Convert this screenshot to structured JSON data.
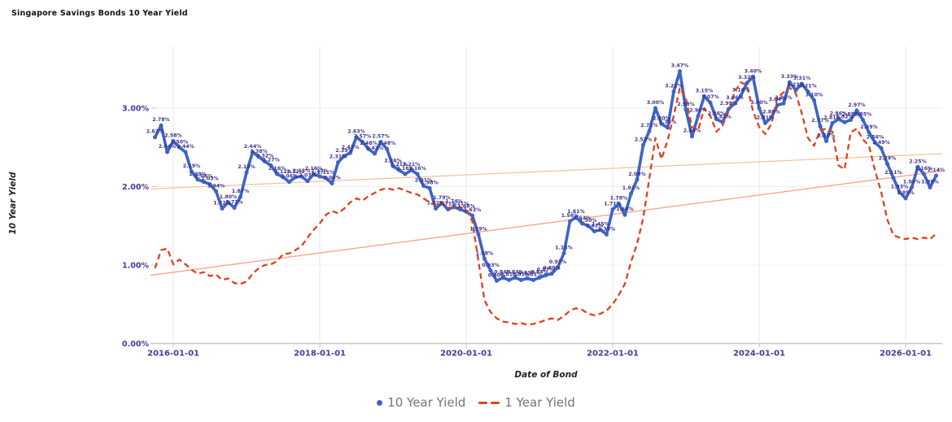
{
  "chart_data": {
    "type": "line",
    "title": "Singapore Savings Bonds 10 Year Yield",
    "xlabel": "Date of Bond",
    "ylabel": "10 Year Yield",
    "start_month": "2015-10",
    "x_ticks": [
      "2016-01-01",
      "2018-01-01",
      "2020-01-01",
      "2022-01-01",
      "2024-01-01",
      "2026-01-01"
    ],
    "y_ticks": [
      "0.00%",
      "1.00%",
      "2.00%",
      "3.00%"
    ],
    "ylim": [
      0,
      3.8
    ],
    "grid": true,
    "legend_position": "bottom",
    "point_label_format": "percent-2dp",
    "colors": {
      "grid": "#e7e7e7",
      "hgrid": "#efefef",
      "axis": "#c6c6c6",
      "tick_label": "#46399b",
      "point_label": "#3e3191",
      "title": "#111111",
      "legend_text": "#757575"
    },
    "series": [
      {
        "name": "10 Year Yield",
        "color": "#3c64c4",
        "style": "solid-dots",
        "labels": true,
        "values": [
          2.63,
          2.78,
          2.44,
          2.58,
          2.5,
          2.44,
          2.19,
          2.09,
          2.06,
          2.03,
          1.94,
          1.72,
          1.8,
          1.73,
          1.87,
          2.18,
          2.44,
          2.38,
          2.32,
          2.27,
          2.16,
          2.12,
          2.06,
          2.12,
          2.13,
          2.07,
          2.16,
          2.13,
          2.11,
          2.04,
          2.31,
          2.39,
          2.43,
          2.63,
          2.57,
          2.48,
          2.42,
          2.57,
          2.48,
          2.26,
          2.21,
          2.16,
          2.21,
          2.16,
          2.01,
          1.98,
          1.72,
          1.79,
          1.71,
          1.74,
          1.71,
          1.68,
          1.63,
          1.39,
          1.08,
          0.93,
          0.8,
          0.84,
          0.81,
          0.84,
          0.81,
          0.83,
          0.81,
          0.84,
          0.87,
          0.89,
          0.97,
          1.15,
          1.56,
          1.61,
          1.53,
          1.5,
          1.43,
          1.45,
          1.39,
          1.71,
          1.78,
          1.64,
          1.91,
          2.09,
          2.53,
          2.71,
          3.0,
          2.8,
          2.75,
          3.21,
          3.47,
          2.98,
          2.64,
          2.9,
          3.15,
          3.07,
          2.86,
          2.82,
          2.99,
          3.06,
          3.16,
          3.32,
          3.4,
          3.0,
          2.81,
          2.88,
          3.04,
          3.06,
          3.33,
          3.23,
          3.31,
          3.21,
          3.1,
          2.77,
          2.58,
          2.81,
          2.86,
          2.82,
          2.85,
          2.97,
          2.85,
          2.69,
          2.56,
          2.49,
          2.29,
          2.11,
          1.93,
          1.85,
          1.99,
          2.25,
          2.16,
          1.99,
          2.14
        ]
      },
      {
        "name": "1 Year Yield",
        "color": "#e0401f",
        "style": "dashed",
        "labels": false,
        "values": [
          0.96,
          1.19,
          1.21,
          1.01,
          1.07,
          1.01,
          0.94,
          0.89,
          0.91,
          0.86,
          0.88,
          0.81,
          0.83,
          0.77,
          0.76,
          0.79,
          0.89,
          0.96,
          1.0,
          1.01,
          1.05,
          1.14,
          1.15,
          1.19,
          1.24,
          1.35,
          1.45,
          1.53,
          1.64,
          1.69,
          1.66,
          1.72,
          1.8,
          1.85,
          1.82,
          1.88,
          1.92,
          1.96,
          1.98,
          1.96,
          1.98,
          1.95,
          1.92,
          1.9,
          1.85,
          1.8,
          1.76,
          1.78,
          1.74,
          1.72,
          1.74,
          1.7,
          1.56,
          1.05,
          0.55,
          0.4,
          0.32,
          0.28,
          0.27,
          0.25,
          0.26,
          0.24,
          0.25,
          0.27,
          0.3,
          0.32,
          0.3,
          0.35,
          0.42,
          0.45,
          0.43,
          0.38,
          0.36,
          0.38,
          0.42,
          0.5,
          0.62,
          0.76,
          1.04,
          1.27,
          1.6,
          2.1,
          2.62,
          2.35,
          2.59,
          2.9,
          3.26,
          3.12,
          2.76,
          2.72,
          3.0,
          2.9,
          2.7,
          2.78,
          2.96,
          3.21,
          3.33,
          3.29,
          2.96,
          2.76,
          2.67,
          2.8,
          3.14,
          3.2,
          3.26,
          3.19,
          2.93,
          2.62,
          2.52,
          2.72,
          2.74,
          2.7,
          2.27,
          2.22,
          2.69,
          2.74,
          2.6,
          2.52,
          2.2,
          1.93,
          1.58,
          1.38,
          1.35,
          1.33,
          1.35,
          1.33,
          1.35,
          1.33,
          1.4
        ]
      }
    ],
    "trendlines": [
      {
        "for": "10 Year Yield",
        "color": "#f2c49e",
        "start": 1.97,
        "end": 2.42
      },
      {
        "for": "1 Year Yield",
        "color": "#ffa28c",
        "start": 0.87,
        "end": 2.2
      }
    ]
  }
}
